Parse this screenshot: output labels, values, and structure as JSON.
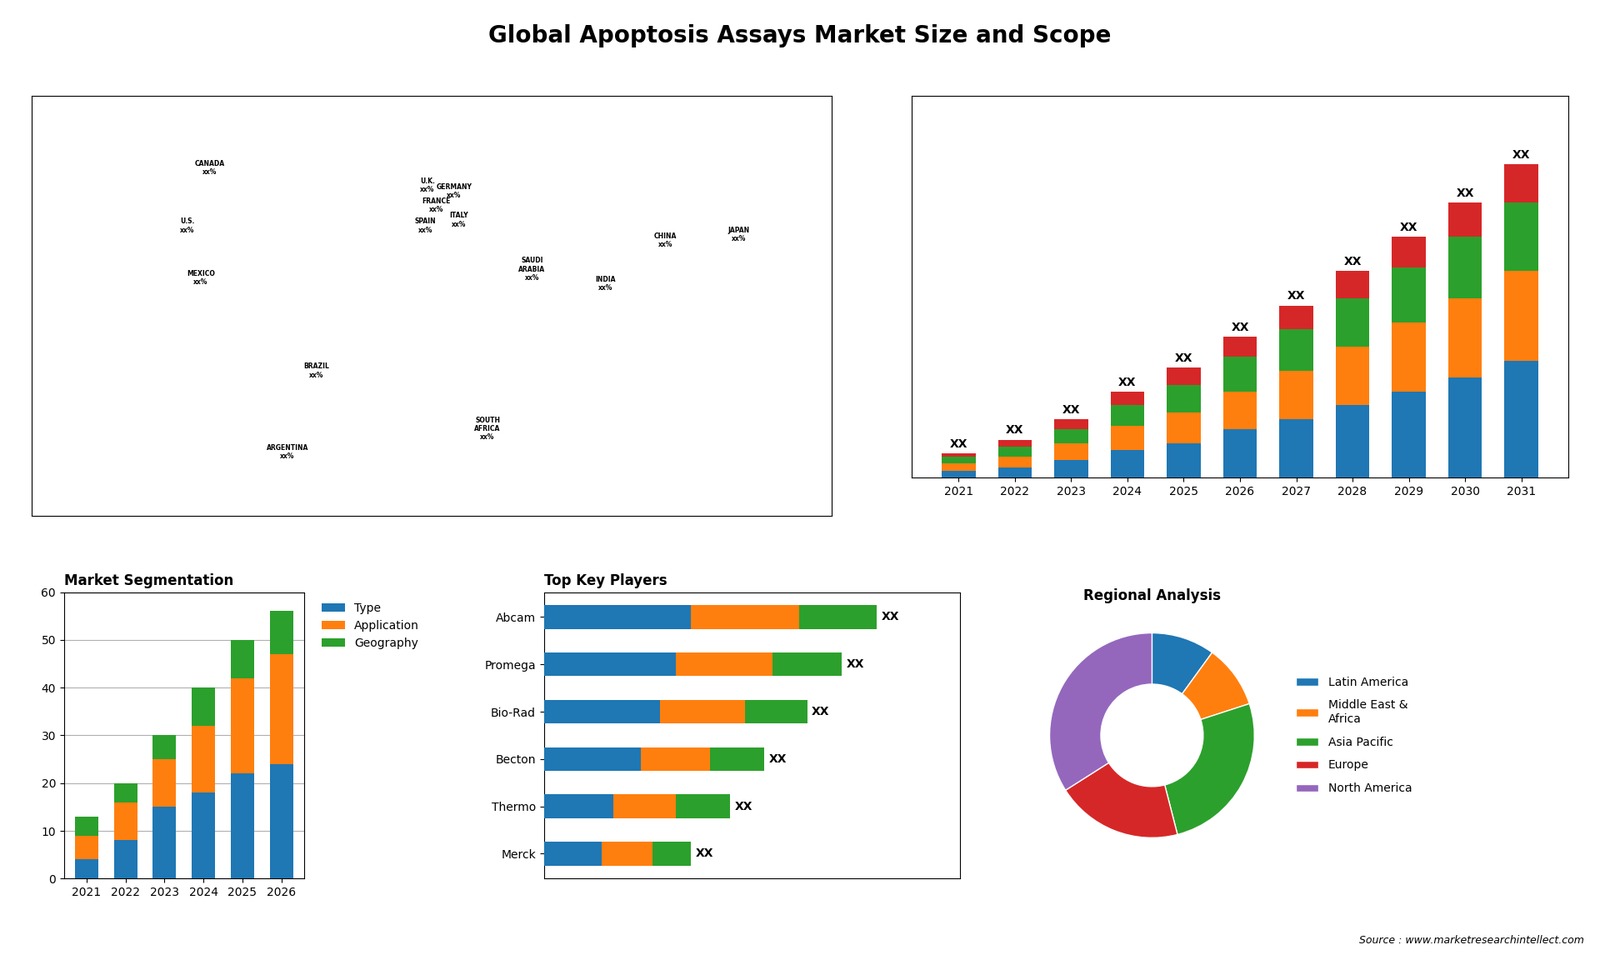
{
  "title": "Global Apoptosis Assays Market Size and Scope",
  "annotations": [
    "Source : www.marketresearchintellect.com"
  ],
  "chart_data": [
    {
      "type": "map",
      "labels": [
        "CANADA\nxx%",
        "U.S.\nxx%",
        "MEXICO\nxx%",
        "BRAZIL\nxx%",
        "ARGENTINA\nxx%",
        "U.K.\nxx%",
        "FRANCE\nxx%",
        "GERMANY\nxx%",
        "SPAIN\nxx%",
        "ITALY\nxx%",
        "SOUTH\nAFRICA\nxx%",
        "SAUDI\nARABIA\nxx%",
        "INDIA\nxx%",
        "CHINA\nxx%",
        "JAPAN\nxx%"
      ],
      "x": [
        -100,
        -110,
        -104,
        -52,
        -65,
        -2,
        2,
        10,
        -3,
        12,
        25,
        45,
        78,
        105,
        138
      ],
      "y": [
        60,
        40,
        22,
        -10,
        -38,
        54,
        47,
        52,
        40,
        42,
        -30,
        25,
        20,
        35,
        37
      ],
      "xlim": [
        -180,
        180
      ],
      "ylim": [
        -60,
        85
      ],
      "tick_labels": false
    },
    {
      "type": "bar",
      "stacked": true,
      "categories": [
        "2021",
        "2022",
        "2023",
        "2024",
        "2025",
        "2026",
        "2027",
        "2028",
        "2029",
        "2030",
        "2031"
      ],
      "series": [
        {
          "values": [
            2,
            3,
            5,
            8,
            10,
            14,
            17,
            21,
            25,
            29,
            34
          ]
        },
        {
          "values": [
            2,
            3,
            5,
            7,
            9,
            11,
            14,
            17,
            20,
            23,
            26
          ]
        },
        {
          "values": [
            2,
            3,
            4,
            6,
            8,
            10,
            12,
            14,
            16,
            18,
            20
          ]
        },
        {
          "values": [
            1,
            2,
            3,
            4,
            5,
            6,
            7,
            8,
            9,
            10,
            11
          ]
        }
      ],
      "data_labels": true,
      "value_labels": [
        "XX",
        "XX",
        "XX",
        "XX",
        "XX",
        "XX",
        "XX",
        "XX",
        "XX",
        "XX",
        "XX"
      ],
      "ylim": [
        0,
        111.02
      ],
      "tick_labels": "x"
    },
    {
      "type": "bar",
      "stacked": true,
      "title": "Market Segmentation",
      "categories": [
        "2021",
        "2022",
        "2023",
        "2024",
        "2025",
        "2026"
      ],
      "series": [
        {
          "name": "Type",
          "values": [
            4,
            8,
            15,
            18,
            22,
            24
          ]
        },
        {
          "name": "Application",
          "values": [
            5,
            8,
            10,
            14,
            20,
            23
          ]
        },
        {
          "name": "Geography",
          "values": [
            4,
            4,
            5,
            8,
            8,
            9
          ]
        }
      ],
      "ylim": [
        0,
        60
      ],
      "yticks": [
        0,
        10,
        20,
        30,
        40,
        50,
        60
      ],
      "grid": true,
      "legend": "upper left"
    },
    {
      "type": "bar",
      "stacked": true,
      "orientation": "horizontal",
      "title": "Top Key Players",
      "categories": [
        "Abcam",
        "Promega",
        "Bio-Rad",
        "Becton",
        "Thermo",
        "Merck"
      ],
      "series": [
        {
          "values": [
            0.38,
            0.34,
            0.3,
            0.25,
            0.18,
            0.15
          ]
        },
        {
          "values": [
            0.28,
            0.25,
            0.22,
            0.18,
            0.16,
            0.13
          ]
        },
        {
          "values": [
            0.2,
            0.18,
            0.16,
            0.14,
            0.14,
            0.1
          ]
        }
      ],
      "data_labels": true,
      "value_labels": [
        "XX",
        "XX",
        "XX",
        "XX",
        "XX",
        "XX"
      ],
      "xlim": [
        0,
        1.075
      ],
      "tick_labels": "y"
    },
    {
      "type": "donut",
      "title": "Regional Analysis",
      "categories": [
        "Latin America",
        "Middle East &\nAfrica",
        "Asia Pacific",
        "Europe",
        "North America"
      ],
      "values": [
        0.1,
        0.1,
        0.26,
        0.2,
        0.34
      ],
      "legend": "center left"
    }
  ]
}
